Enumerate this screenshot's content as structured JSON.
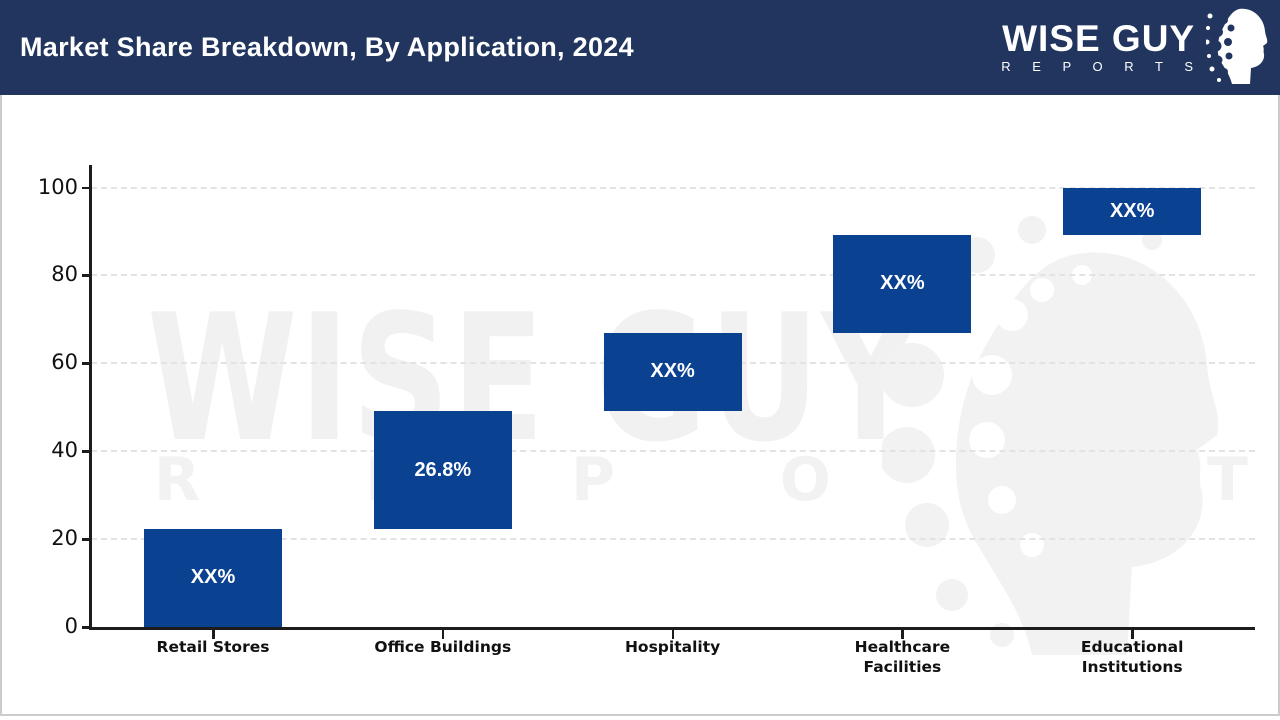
{
  "header": {
    "title": "Market Share Breakdown, By Application, 2024",
    "logo": {
      "line1": "WISE GUY",
      "line2": "REPORTS"
    }
  },
  "watermark": {
    "line1": "WISE GUY",
    "line2": "REPORTS"
  },
  "colors": {
    "header_bg": "#21355f",
    "bar": "#0b4191",
    "bar_label": "#ffffff",
    "axis": "#1c1c1c",
    "gridline": "#e3e3e3",
    "watermark": "#f1f1f2",
    "frame_border": "#cccccc"
  },
  "chart_data": {
    "type": "bar",
    "subtype": "waterfall",
    "title": "Market Share Breakdown, By Application, 2024",
    "categories": [
      "Retail Stores",
      "Office Buildings",
      "Hospitality",
      "Healthcare Facilities",
      "Educational Institutions"
    ],
    "segments": [
      {
        "category": "Retail Stores",
        "tick_lines": [
          "Retail Stores"
        ],
        "start": 0,
        "end": 22.3,
        "value": 22.3,
        "label": "XX%"
      },
      {
        "category": "Office Buildings",
        "tick_lines": [
          "Office Buildings"
        ],
        "start": 22.3,
        "end": 49.1,
        "value": 26.8,
        "label": "26.8%"
      },
      {
        "category": "Hospitality",
        "tick_lines": [
          "Hospitality"
        ],
        "start": 49.1,
        "end": 67.0,
        "value": 17.9,
        "label": "XX%"
      },
      {
        "category": "Healthcare Facilities",
        "tick_lines": [
          "Healthcare",
          "Facilities"
        ],
        "start": 67.0,
        "end": 89.3,
        "value": 22.3,
        "label": "XX%"
      },
      {
        "category": "Educational Institutions",
        "tick_lines": [
          "Educational",
          "Institutions"
        ],
        "start": 89.3,
        "end": 100,
        "value": 10.7,
        "label": "XX%"
      }
    ],
    "xlabel": "",
    "ylabel": "",
    "yticks": [
      0,
      20,
      40,
      60,
      80,
      100
    ],
    "ylim": [
      0,
      105
    ],
    "grid": "horizontal-dashed",
    "legend": "none"
  }
}
